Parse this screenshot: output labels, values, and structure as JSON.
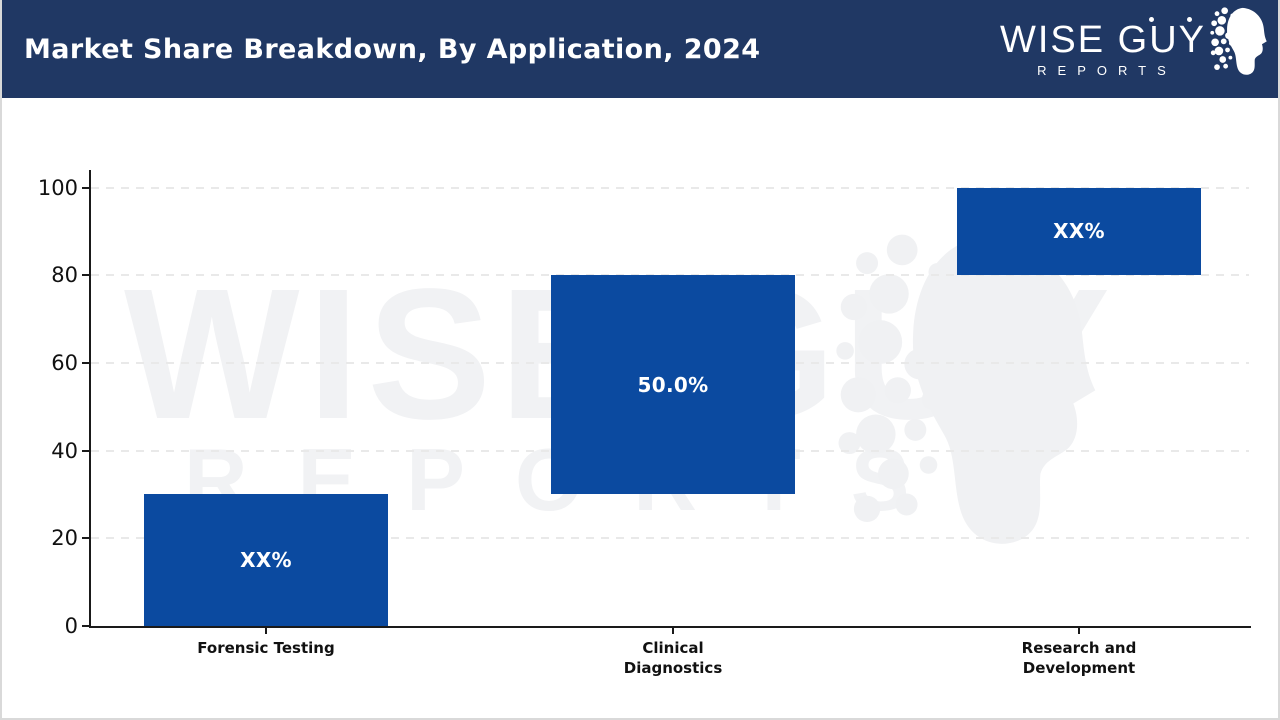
{
  "header": {
    "title": "Market Share Breakdown, By Application, 2024",
    "logo": {
      "wordmark": "WISE GUY",
      "subtitle": "REPORTS"
    }
  },
  "watermark": {
    "wordmark": "WISE GUY",
    "subtitle": "REPORTS"
  },
  "chart_data": {
    "type": "bar",
    "variant": "waterfall-floating-bars",
    "title": "Market Share Breakdown, By Application, 2024",
    "categories": [
      "Forensic Testing",
      "Clinical Diagnostics",
      "Research and Development"
    ],
    "category_lines": [
      [
        "Forensic Testing"
      ],
      [
        "Clinical",
        "Diagnostics"
      ],
      [
        "Research and",
        "Development"
      ]
    ],
    "segments": [
      {
        "category": "Forensic Testing",
        "start": 0,
        "end": 30,
        "label": "XX%"
      },
      {
        "category": "Clinical Diagnostics",
        "start": 30,
        "end": 80,
        "label": "50.0%"
      },
      {
        "category": "Research and Development",
        "start": 80,
        "end": 100,
        "label": "XX%"
      }
    ],
    "ylim": [
      0,
      100
    ],
    "yticks": [
      0,
      20,
      40,
      60,
      80,
      100
    ],
    "grid": "horizontal-dashed",
    "legend": "none",
    "bar_color": "#0b4aa0",
    "bar_label_color": "#ffffff",
    "axis_color": "#1a1a1a",
    "gridline_color": "#e9e9e9"
  },
  "colors": {
    "header_navy": "#203864",
    "page_background": "#ffffff",
    "page_border": "#d9d9d9",
    "watermark": "#f1f2f4"
  }
}
